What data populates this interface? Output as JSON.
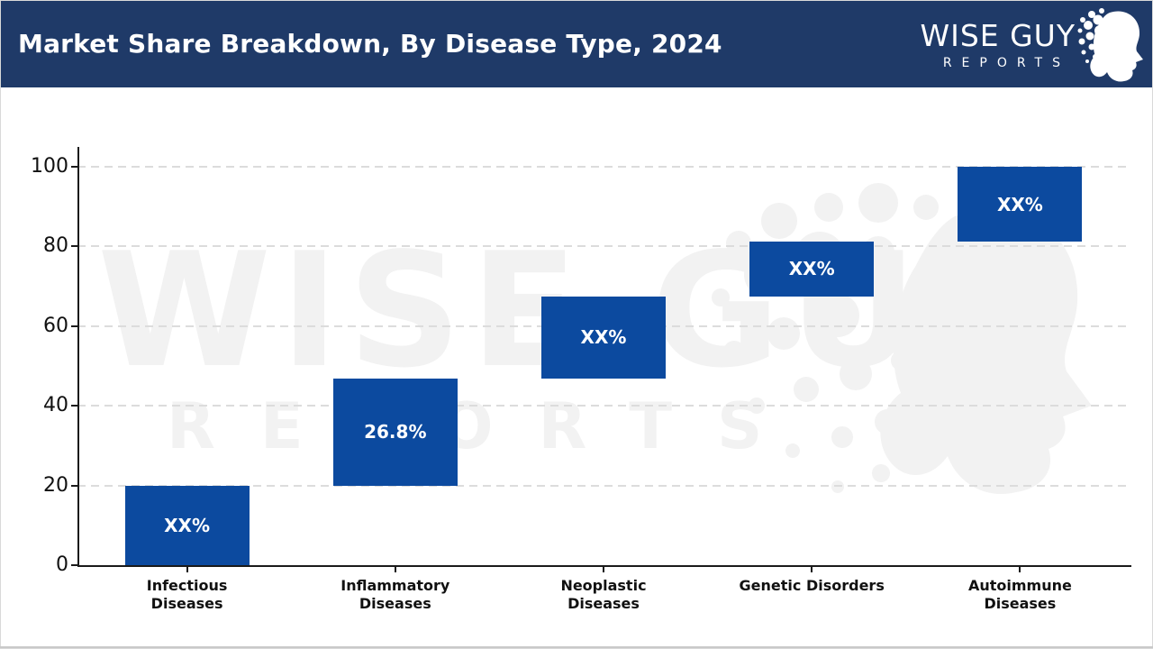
{
  "header": {
    "title": "Market Share Breakdown, By Disease Type, 2024",
    "bg_color": "#1f3a68",
    "logo": {
      "line1": "WISE GUY",
      "line2": "REPORTS"
    }
  },
  "watermark": {
    "line1": "WISE GUY",
    "line2": "REPORTS"
  },
  "footer": {
    "divider_color": "#c9c9c9"
  },
  "chart_data": {
    "type": "bar",
    "subtype": "floating-waterfall",
    "title": "Market Share Breakdown, By Disease Type, 2024",
    "xlabel": "",
    "ylabel": "",
    "ylim": [
      0,
      105
    ],
    "yticks": [
      0,
      20,
      40,
      60,
      80,
      100
    ],
    "grid": "horizontal dashed",
    "legend": "none",
    "bar_color": "#0c4a9f",
    "bar_label_color": "#ffffff",
    "axis_color": "#1a1a1a",
    "grid_color": "#dcdcdc",
    "categories": [
      [
        "Infectious",
        "Diseases"
      ],
      [
        "Inflammatory",
        "Diseases"
      ],
      [
        "Neoplastic",
        "Diseases"
      ],
      [
        "Genetic Disorders"
      ],
      [
        "Autoimmune",
        "Diseases"
      ]
    ],
    "segments": [
      {
        "category": "Infectious Diseases",
        "start": 0,
        "end": 20,
        "label": "XX%"
      },
      {
        "category": "Inflammatory Diseases",
        "start": 20,
        "end": 46.8,
        "label": "26.8%"
      },
      {
        "category": "Neoplastic Diseases",
        "start": 46.8,
        "end": 67.5,
        "label": "XX%"
      },
      {
        "category": "Genetic Disorders",
        "start": 67.5,
        "end": 81.2,
        "label": "XX%"
      },
      {
        "category": "Autoimmune Diseases",
        "start": 81.2,
        "end": 100,
        "label": "XX%"
      }
    ]
  }
}
